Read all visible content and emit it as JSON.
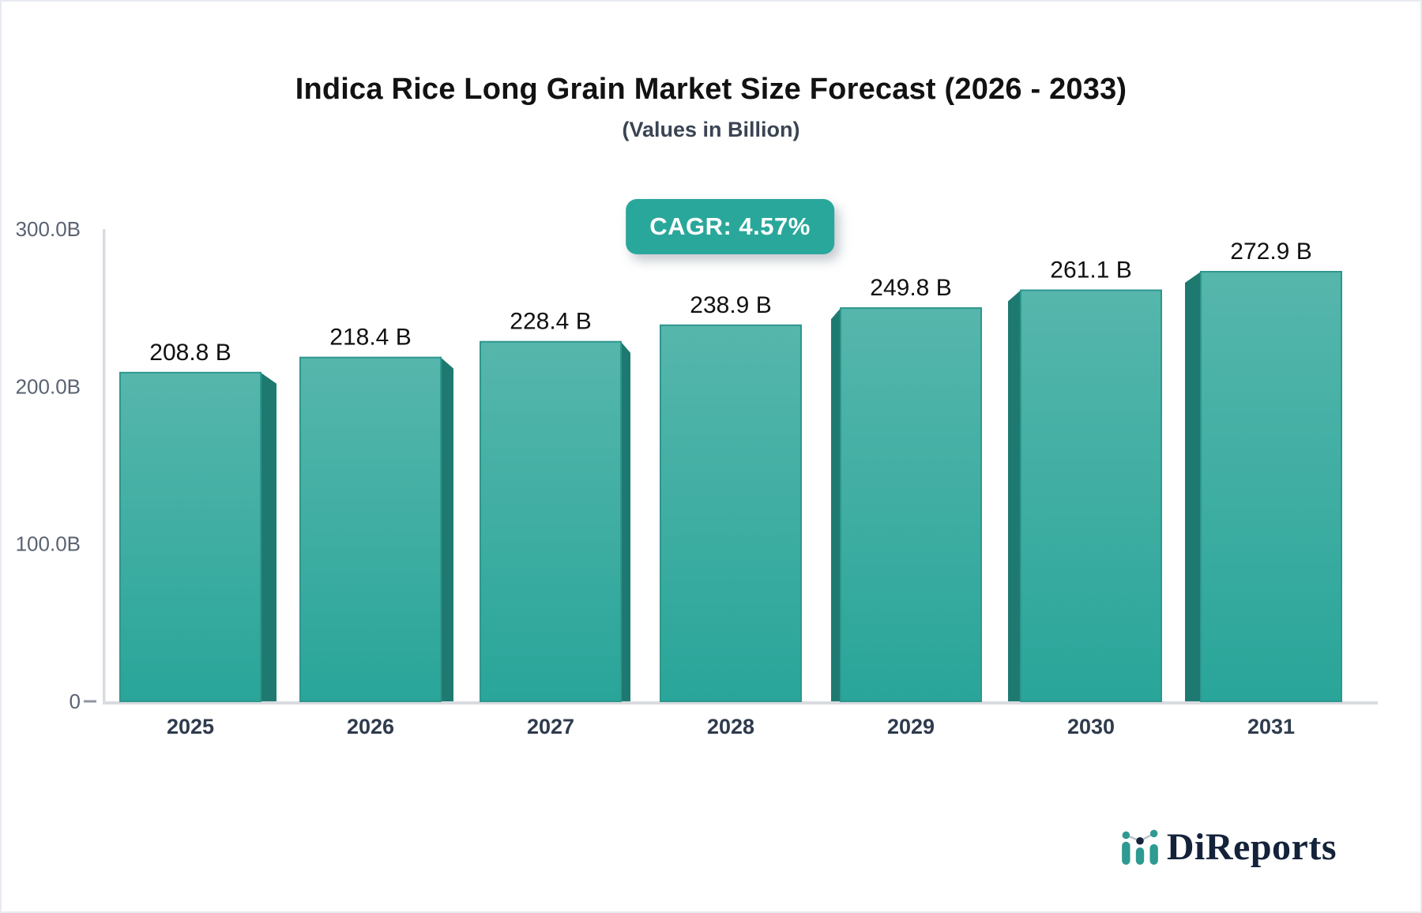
{
  "header": {
    "title": "Indica Rice Long Grain Market Size Forecast (2026 - 2033)",
    "subtitle": "(Values in Billion)"
  },
  "badge": {
    "label": "CAGR: 4.57%"
  },
  "chart_data": {
    "type": "bar",
    "title": "Indica Rice Long Grain Market Size Forecast (2026 - 2033)",
    "subtitle": "(Values in Billion)",
    "categories": [
      "2025",
      "2026",
      "2027",
      "2028",
      "2029",
      "2030",
      "2031"
    ],
    "values": [
      208.8,
      218.4,
      228.4,
      238.9,
      249.8,
      261.1,
      272.9
    ],
    "bar_value_labels": [
      "208.8 B",
      "218.4 B",
      "228.4 B",
      "238.9 B",
      "249.8 B",
      "261.1 B",
      "272.9 B"
    ],
    "unit": "Billion",
    "ylim": [
      0,
      300
    ],
    "y_ticks": [
      {
        "label": "300.0B",
        "value": 300
      },
      {
        "label": "200.0B",
        "value": 200
      },
      {
        "label": "100.0B",
        "value": 100
      },
      {
        "label": "0",
        "value": 0
      }
    ],
    "xlabel": "",
    "ylabel": "",
    "grid": false,
    "legend_position": "none",
    "style": "3d-extruded-bars",
    "colors": {
      "bar_gradient_top": "#56b6ac",
      "bar_gradient_bottom": "#29a599",
      "bar_edge": "#2e978d",
      "bar_side_3d": "#1e7a71",
      "axis_line": "#d9dbe1",
      "tick_dash": "#8f96a1",
      "y_tick_text": "#5a6372",
      "category_text": "#2f3b4d",
      "value_label_text": "#111111",
      "badge_bg": "#2aa79b",
      "badge_text": "#ffffff"
    }
  },
  "footer_logo": {
    "text": "DiReports",
    "icon": "mini-bar-chart-icon",
    "colors": {
      "text": "#14223a",
      "icon_teal": "#2e9a92",
      "icon_navy": "#16243d",
      "icon_line": "#b6c0c9"
    }
  }
}
